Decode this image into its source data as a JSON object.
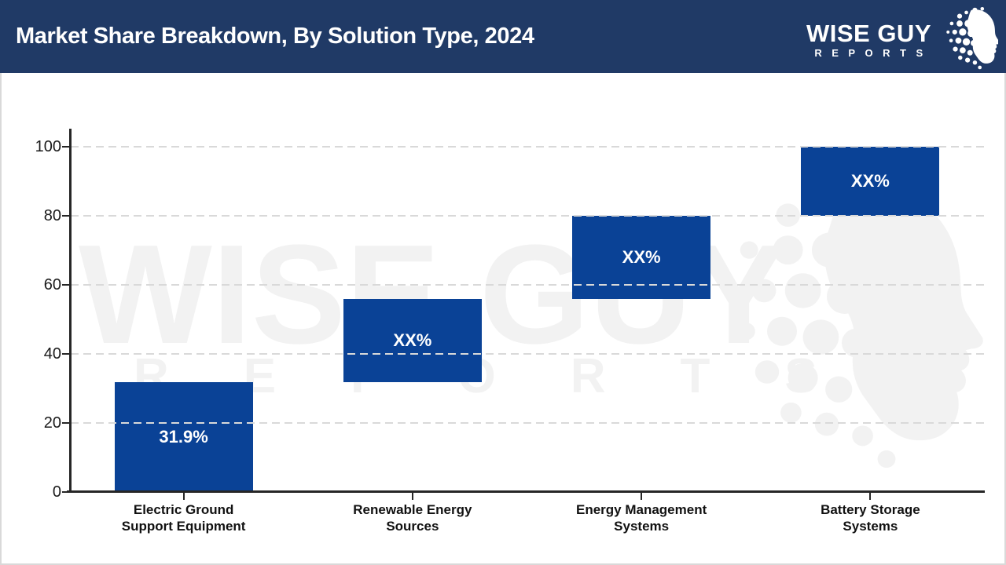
{
  "header": {
    "title": "Market Share Breakdown, By Solution Type, 2024",
    "logo": {
      "name": "WISE GUY",
      "sub": "REPORTS"
    }
  },
  "watermark": {
    "line1": "WISE GUY",
    "line2": "REPORTS"
  },
  "colors": {
    "header_bg": "#203a66",
    "bar": "#0a4296",
    "grid": "#d9d9d9",
    "axis": "#262626",
    "bar_label": "#ffffff",
    "title_text": "#ffffff",
    "watermark": "#f2f2f2"
  },
  "chart_data": {
    "type": "bar",
    "subtype": "waterfall",
    "title": "Market Share Breakdown, By Solution Type, 2024",
    "xlabel": "",
    "ylabel": "",
    "ylim": [
      0,
      100
    ],
    "yticks": [
      0,
      20,
      40,
      60,
      80,
      100
    ],
    "grid": "dashed-horizontal",
    "legend": "none",
    "bar_color": "#0a4296",
    "categories": [
      "Electric Ground Support Equipment",
      "Renewable Energy Sources",
      "Energy Management Systems",
      "Battery Storage Systems"
    ],
    "categories_lines": [
      [
        "Electric Ground",
        "Support Equipment"
      ],
      [
        "Renewable Energy",
        "Sources"
      ],
      [
        "Energy Management",
        "Systems"
      ],
      [
        "Battery Storage",
        "Systems"
      ]
    ],
    "series": [
      {
        "name": "Market Share",
        "segments": [
          {
            "start": 0,
            "end": 31.9,
            "label": "31.9%"
          },
          {
            "start": 31.9,
            "end": 56,
            "label": "XX%"
          },
          {
            "start": 56,
            "end": 80,
            "label": "XX%"
          },
          {
            "start": 80,
            "end": 100,
            "label": "XX%"
          }
        ]
      }
    ]
  }
}
